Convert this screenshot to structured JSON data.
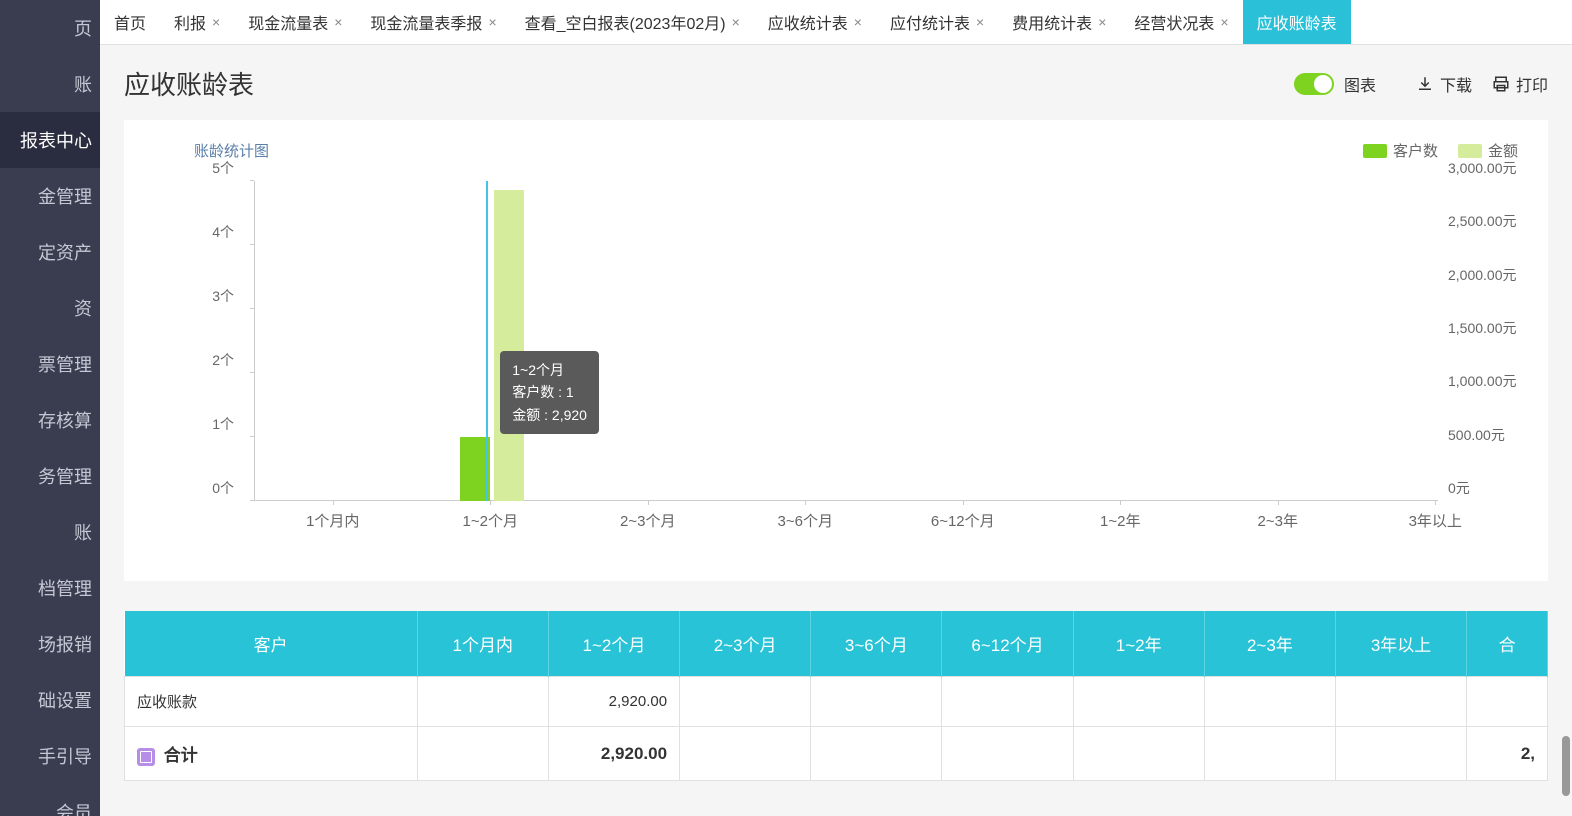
{
  "sidebar": {
    "items": [
      {
        "label": "页"
      },
      {
        "label": "账"
      },
      {
        "label": "报表中心",
        "active": true
      },
      {
        "label": "金管理"
      },
      {
        "label": "定资产"
      },
      {
        "label": "资"
      },
      {
        "label": "票管理"
      },
      {
        "label": "存核算"
      },
      {
        "label": "务管理"
      },
      {
        "label": "账"
      },
      {
        "label": "档管理"
      },
      {
        "label": "场报销"
      },
      {
        "label": "础设置"
      },
      {
        "label": "手引导"
      },
      {
        "label": "会员"
      }
    ]
  },
  "tabs": [
    {
      "label": "首页",
      "closable": false
    },
    {
      "label": "利报",
      "closable": true
    },
    {
      "label": "现金流量表",
      "closable": true
    },
    {
      "label": "现金流量表季报",
      "closable": true
    },
    {
      "label": "查看_空白报表(2023年02月)",
      "closable": true
    },
    {
      "label": "应收统计表",
      "closable": true
    },
    {
      "label": "应付统计表",
      "closable": true
    },
    {
      "label": "费用统计表",
      "closable": true
    },
    {
      "label": "经营状况表",
      "closable": true
    },
    {
      "label": "应收账龄表",
      "closable": false,
      "active": true
    }
  ],
  "page": {
    "title": "应收账龄表",
    "toggle_label": "图表",
    "download_label": "下载",
    "print_label": "打印"
  },
  "chart": {
    "title": "账龄统计图",
    "type": "bar",
    "legend": [
      {
        "label": "客户数",
        "color": "#7ed321"
      },
      {
        "label": "金额",
        "color": "#d4ec9b"
      }
    ],
    "categories": [
      "1个月内",
      "1~2个月",
      "2~3个月",
      "3~6个月",
      "6~12个月",
      "1~2年",
      "2~3年",
      "3年以上"
    ],
    "left_axis": {
      "ticks": [
        "0个",
        "1个",
        "2个",
        "3个",
        "4个",
        "5个"
      ],
      "min": 0,
      "max": 5
    },
    "right_axis": {
      "ticks": [
        "0元",
        "500.00元",
        "1,000.00元",
        "1,500.00元",
        "2,000.00元",
        "2,500.00元",
        "3,000.00元"
      ],
      "min": 0,
      "max": 3000
    },
    "series_customers": [
      0,
      1,
      0,
      0,
      0,
      0,
      0,
      0
    ],
    "series_amount": [
      0,
      2920,
      0,
      0,
      0,
      0,
      0,
      0
    ],
    "bar_colors": {
      "customers": "#7ed321",
      "amount": "#d4ec9b"
    },
    "hover_line_color": "#46c4e8",
    "tooltip": {
      "title": "1~2个月",
      "line1": "客户数 : 1",
      "line2": "金额 : 2,920"
    }
  },
  "table": {
    "columns": [
      "客户",
      "1个月内",
      "1~2个月",
      "2~3个月",
      "3~6个月",
      "6~12个月",
      "1~2年",
      "2~3年",
      "3年以上",
      "合"
    ],
    "col_widths": [
      "290px",
      "130px",
      "130px",
      "130px",
      "130px",
      "130px",
      "130px",
      "130px",
      "130px",
      "80px"
    ],
    "rows": [
      {
        "label": "应收账款",
        "cells": [
          "",
          "2,920.00",
          "",
          "",
          "",
          "",
          "",
          "",
          ""
        ]
      }
    ],
    "total": {
      "label": "合计",
      "cells": [
        "",
        "2,920.00",
        "",
        "",
        "",
        "",
        "",
        "",
        "2,"
      ]
    }
  }
}
